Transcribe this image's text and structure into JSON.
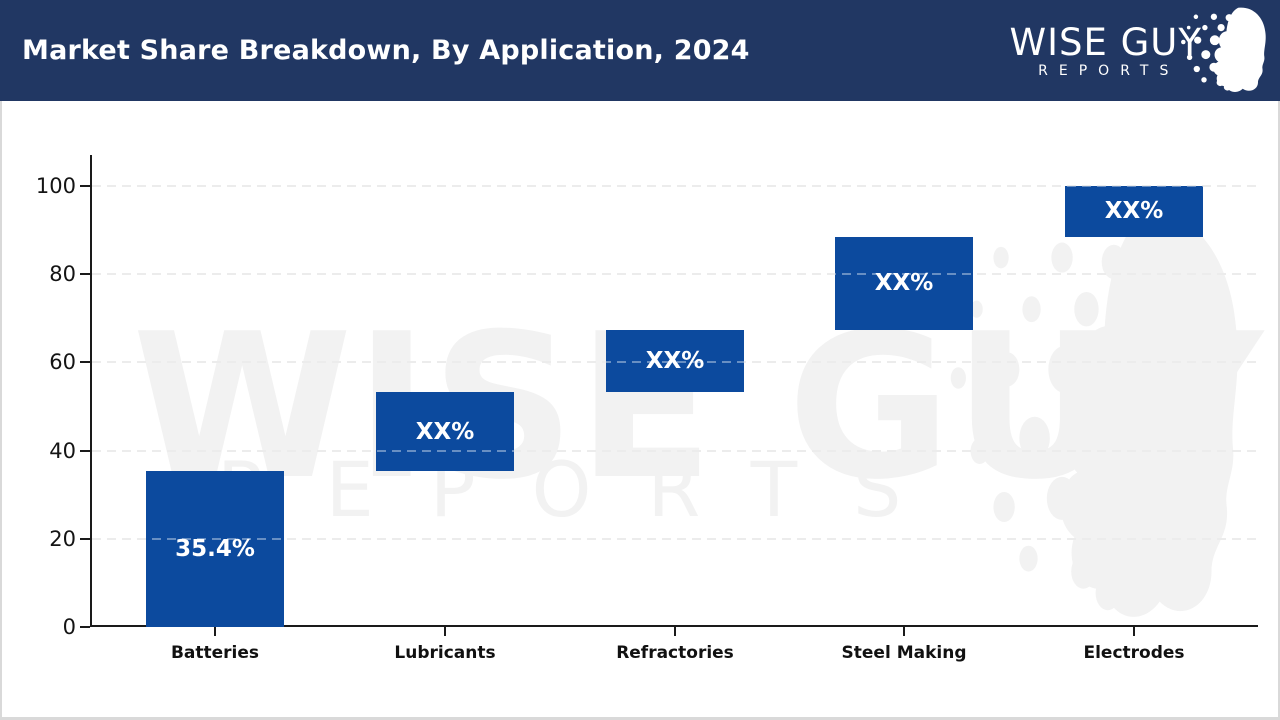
{
  "header": {
    "title": "Market Share Breakdown, By Application, 2024",
    "logo": {
      "line1": "WISE GUY",
      "line2": "REPORTS"
    }
  },
  "watermark": {
    "line1": "WISE GUY",
    "line2": "REPORTS"
  },
  "colors": {
    "header_bg": "#213763",
    "bar": "#0c4a9e",
    "axis": "#1a1a1a",
    "grid": "#e0e0e0",
    "watermark": "#f2f2f2",
    "border": "#d9d9d9"
  },
  "chart_data": {
    "type": "bar",
    "subtype": "waterfall-floating-bars",
    "title": "Market Share Breakdown, By Application, 2024",
    "categories": [
      "Batteries",
      "Lubricants",
      "Refractories",
      "Steel Making",
      "Electrodes"
    ],
    "segments": [
      {
        "category": "Batteries",
        "start": 0,
        "end": 35.4,
        "value": 35.4,
        "label": "35.4%"
      },
      {
        "category": "Lubricants",
        "start": 35.4,
        "end": 53.2,
        "value": 17.8,
        "label": "XX%"
      },
      {
        "category": "Refractories",
        "start": 53.2,
        "end": 67.4,
        "value": 14.2,
        "label": "XX%"
      },
      {
        "category": "Steel Making",
        "start": 67.4,
        "end": 88.4,
        "value": 21.0,
        "label": "XX%"
      },
      {
        "category": "Electrodes",
        "start": 88.4,
        "end": 100,
        "value": 11.6,
        "label": "XX%"
      }
    ],
    "xlabel": "",
    "ylabel": "",
    "ylim": [
      0,
      107
    ],
    "yticks": [
      0,
      20,
      40,
      60,
      80,
      100
    ],
    "grid": "horizontal-dashed",
    "legend": "none",
    "bar_color": "#0c4a9e",
    "label_color": "#ffffff"
  }
}
